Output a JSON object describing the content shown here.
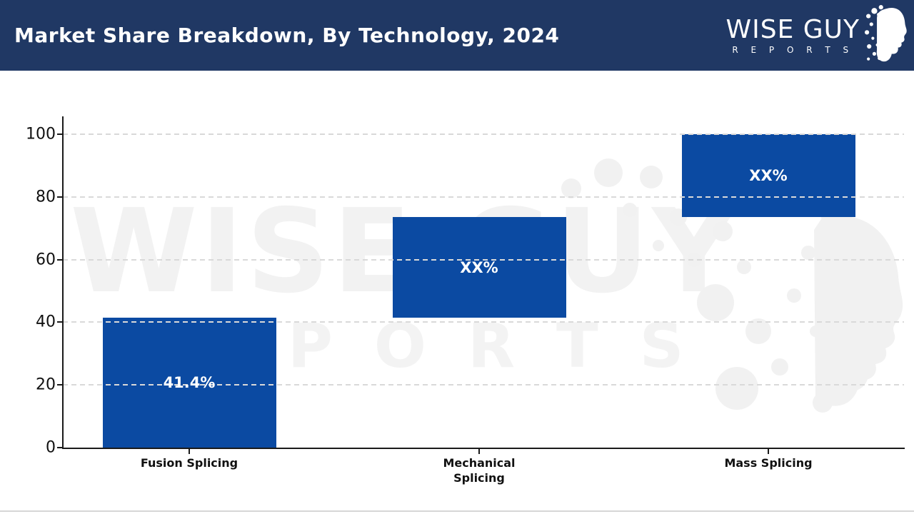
{
  "header": {
    "title": "Market Share Breakdown, By Technology, 2024",
    "logo": {
      "brand_line1": "WISE GUY",
      "brand_line2": "R E P O R T S",
      "face_icon": "face-profile-dots"
    }
  },
  "watermark": {
    "line1": "WISE GUY",
    "line2": "R E P O R T S"
  },
  "chart_data": {
    "type": "bar",
    "subtype": "waterfall",
    "title": "Market Share Breakdown, By Technology, 2024",
    "xlabel": "",
    "ylabel": "",
    "ylim": [
      0,
      100
    ],
    "yticks": [
      "0",
      "20",
      "40",
      "60",
      "80",
      "100"
    ],
    "grid": {
      "axis": "y",
      "style": "dashed",
      "on": true
    },
    "legend": "none",
    "bar_color": "#0B4AA2",
    "bar_label_color": "#ffffff",
    "categories": [
      {
        "lines": [
          "Fusion Splicing"
        ]
      },
      {
        "lines": [
          "Mechanical",
          "Splicing"
        ]
      },
      {
        "lines": [
          "Mass Splicing"
        ]
      }
    ],
    "segments": [
      {
        "category": "Fusion Splicing",
        "start": 0,
        "end": 41.4,
        "value": 41.4,
        "label": "41.4%"
      },
      {
        "category": "Mechanical Splicing",
        "start": 41.4,
        "end": 73.5,
        "value": 32.1,
        "label": "XX%"
      },
      {
        "category": "Mass Splicing",
        "start": 73.5,
        "end": 100,
        "value": 26.5,
        "label": "XX%"
      }
    ]
  },
  "colors": {
    "header_bg": "#203864",
    "bar": "#0B4AA2",
    "axis": "#1a1a1a",
    "grid": "#d9d9d9",
    "watermark": "#f2f2f2"
  }
}
